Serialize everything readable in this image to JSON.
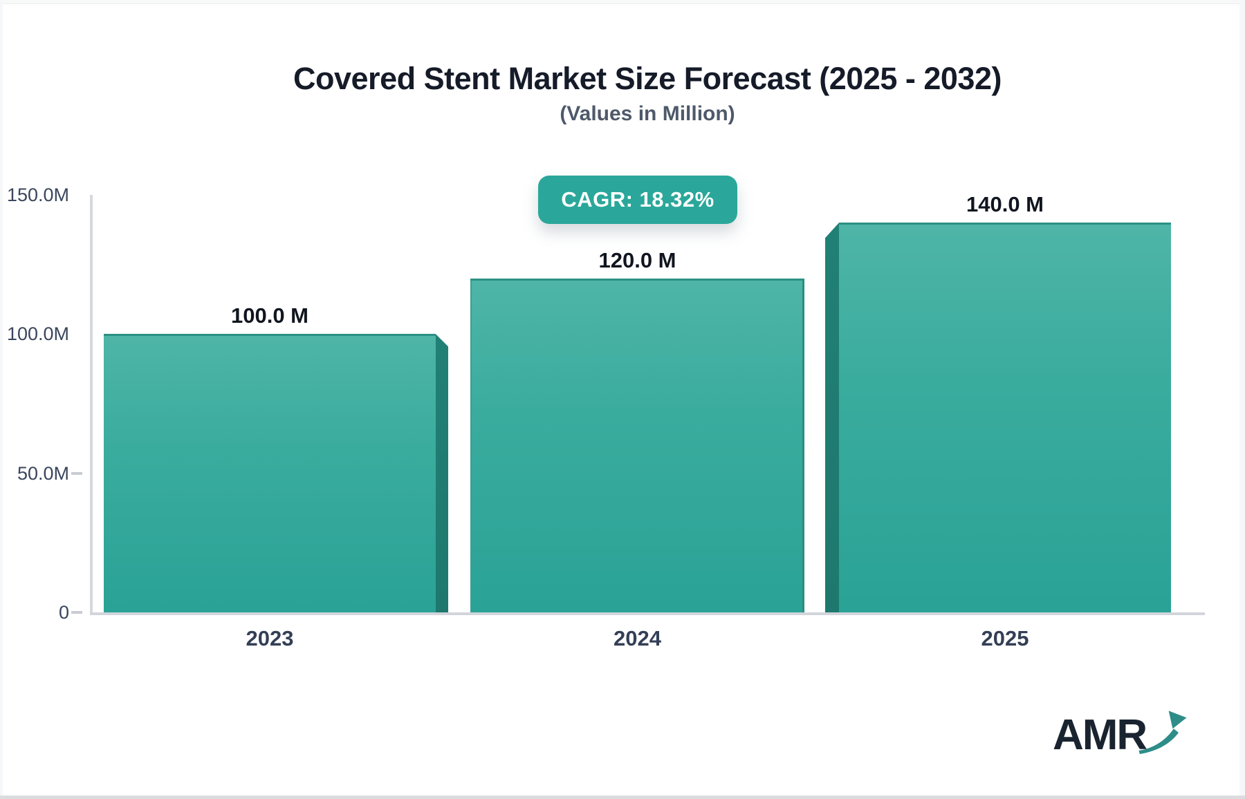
{
  "header": {
    "title": "Covered Stent Market Size Forecast (2025 - 2032)",
    "subtitle": "(Values in Million)"
  },
  "badge": {
    "label": "CAGR: 18.32%"
  },
  "chart_data": {
    "type": "bar",
    "title": "Covered Stent Market Size Forecast (2025 - 2032)",
    "subtitle": "(Values in Million)",
    "unit": "Million",
    "categories": [
      "2023",
      "2024",
      "2025"
    ],
    "values": [
      100.0,
      120.0,
      140.0
    ],
    "value_labels": [
      "100.0 M",
      "120.0 M",
      "140.0 M"
    ],
    "cagr": "18.32%",
    "ylim": [
      0,
      150
    ],
    "y_ticks": {
      "values": [
        150,
        100,
        50,
        0
      ],
      "labels": [
        "150.0M",
        "100.0M",
        "50.0M",
        "0"
      ]
    },
    "grid": false,
    "legend": false,
    "bar_color_top": "#4eb5a7",
    "bar_color_bottom": "#2aa296",
    "bar_side_color": "#1f7d73",
    "accent": "#2aa79a"
  },
  "logo": {
    "text": "AMR"
  }
}
